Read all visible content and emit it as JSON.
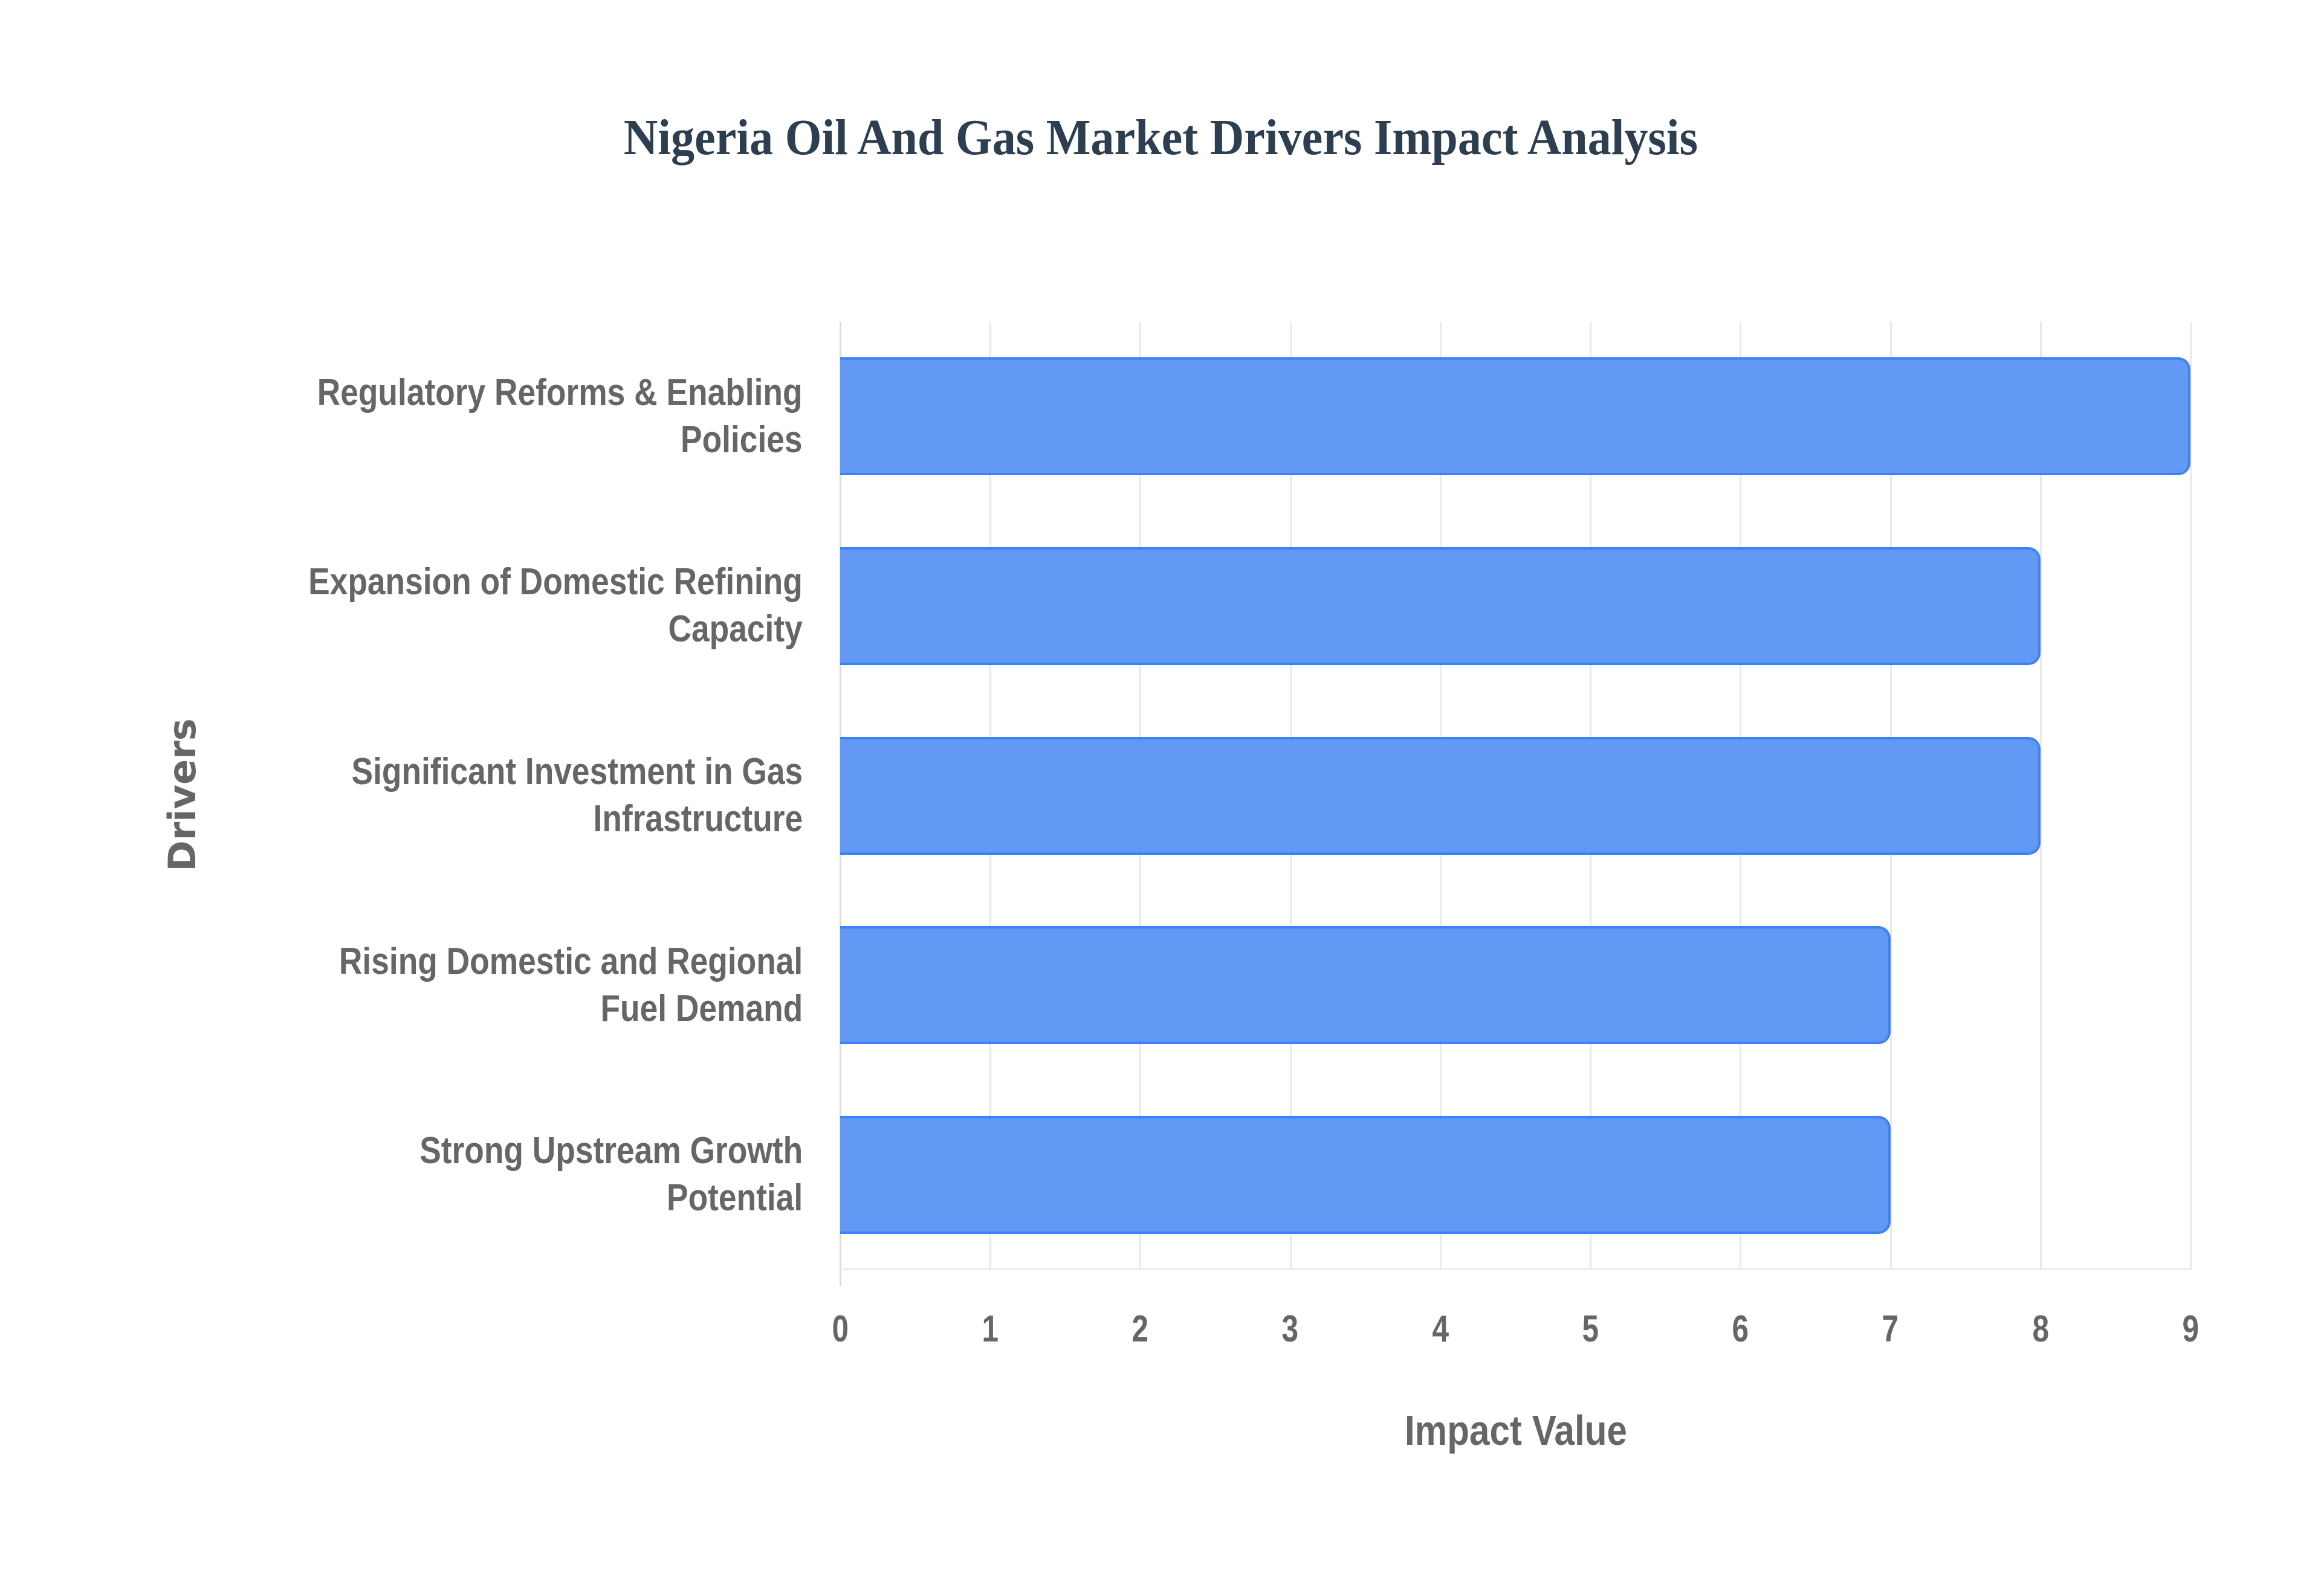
{
  "chart": {
    "title": "Nigeria Oil And Gas Market Drivers Impact Analysis",
    "xlabel": "Impact Value",
    "ylabel": "Drivers",
    "xticks": [
      "0",
      "1",
      "2",
      "3",
      "4",
      "5",
      "6",
      "7",
      "8",
      "9"
    ],
    "bars": [
      {
        "label_lines": [
          "Regulatory Reforms & Enabling",
          "Policies"
        ],
        "value": 9
      },
      {
        "label_lines": [
          "Expansion of Domestic Refining",
          "Capacity"
        ],
        "value": 8
      },
      {
        "label_lines": [
          "Significant Investment in Gas",
          "Infrastructure"
        ],
        "value": 8
      },
      {
        "label_lines": [
          "Rising Domestic and Regional",
          "Fuel Demand"
        ],
        "value": 7
      },
      {
        "label_lines": [
          "Strong Upstream Growth",
          "Potential"
        ],
        "value": 7
      }
    ],
    "colors": {
      "bar_fill": "#6199f5",
      "bar_border": "#3b82f6",
      "title": "#2c3e50",
      "axis_text": "#666666",
      "grid": "#e9e9e9"
    }
  },
  "chart_data": {
    "type": "bar",
    "orientation": "horizontal",
    "title": "Nigeria Oil And Gas Market Drivers Impact Analysis",
    "xlabel": "Impact Value",
    "ylabel": "Drivers",
    "categories": [
      "Regulatory Reforms & Enabling Policies",
      "Expansion of Domestic Refining Capacity",
      "Significant Investment in Gas Infrastructure",
      "Rising Domestic and Regional Fuel Demand",
      "Strong Upstream Growth Potential"
    ],
    "values": [
      9,
      8,
      8,
      7,
      7
    ],
    "xlim": [
      0,
      9
    ],
    "xticks": [
      0,
      1,
      2,
      3,
      4,
      5,
      6,
      7,
      8,
      9
    ],
    "grid": true,
    "legend": null
  }
}
